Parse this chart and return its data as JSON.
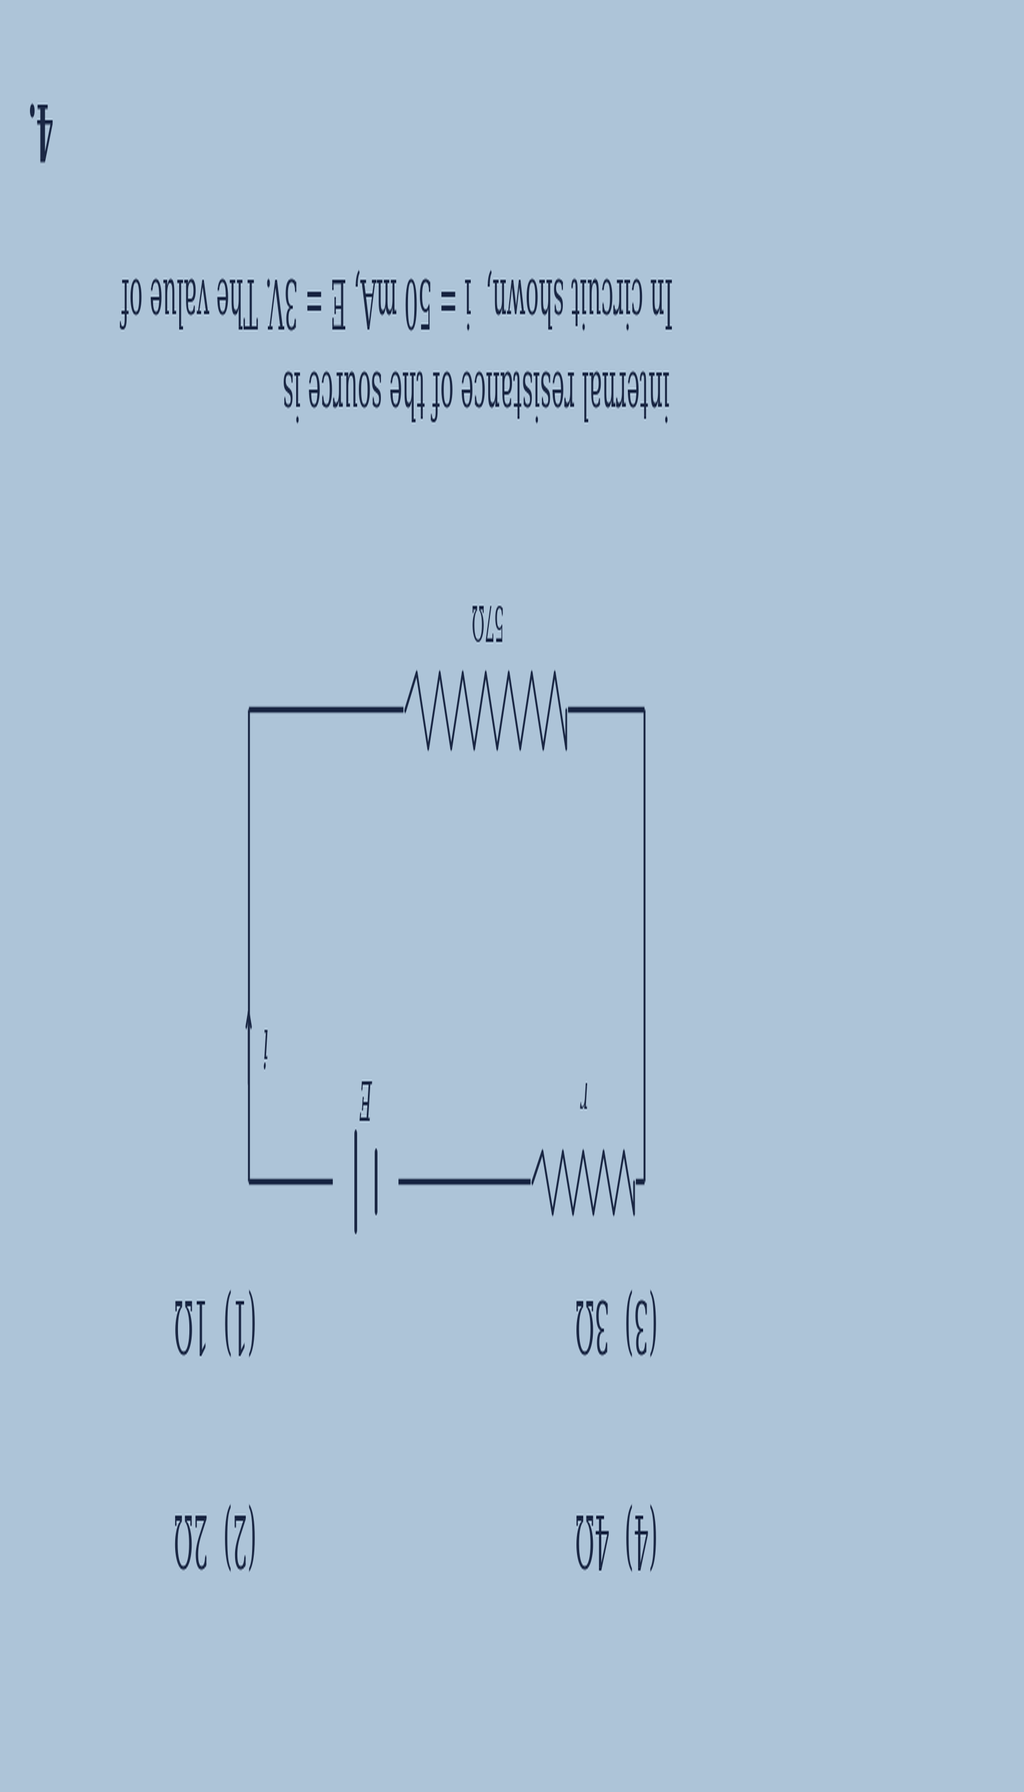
{
  "background_color": "#adc4d8",
  "question_number": "4.",
  "question_text_line1": "In circuit shown,  i = 50 mA, E = 3V. The value of",
  "question_text_line2": "internal resistance of the source is",
  "options": [
    "(1)  1Ω",
    "(2)  2Ω",
    "(3)  3Ω",
    "(4)  4Ω"
  ],
  "circuit": {
    "battery_label": "E",
    "resistor_label": "57Ω",
    "internal_label": "r",
    "current_label": "i"
  },
  "text_color": "#1a2744",
  "font_size_question": 28,
  "font_size_options": 30,
  "font_size_number": 32
}
